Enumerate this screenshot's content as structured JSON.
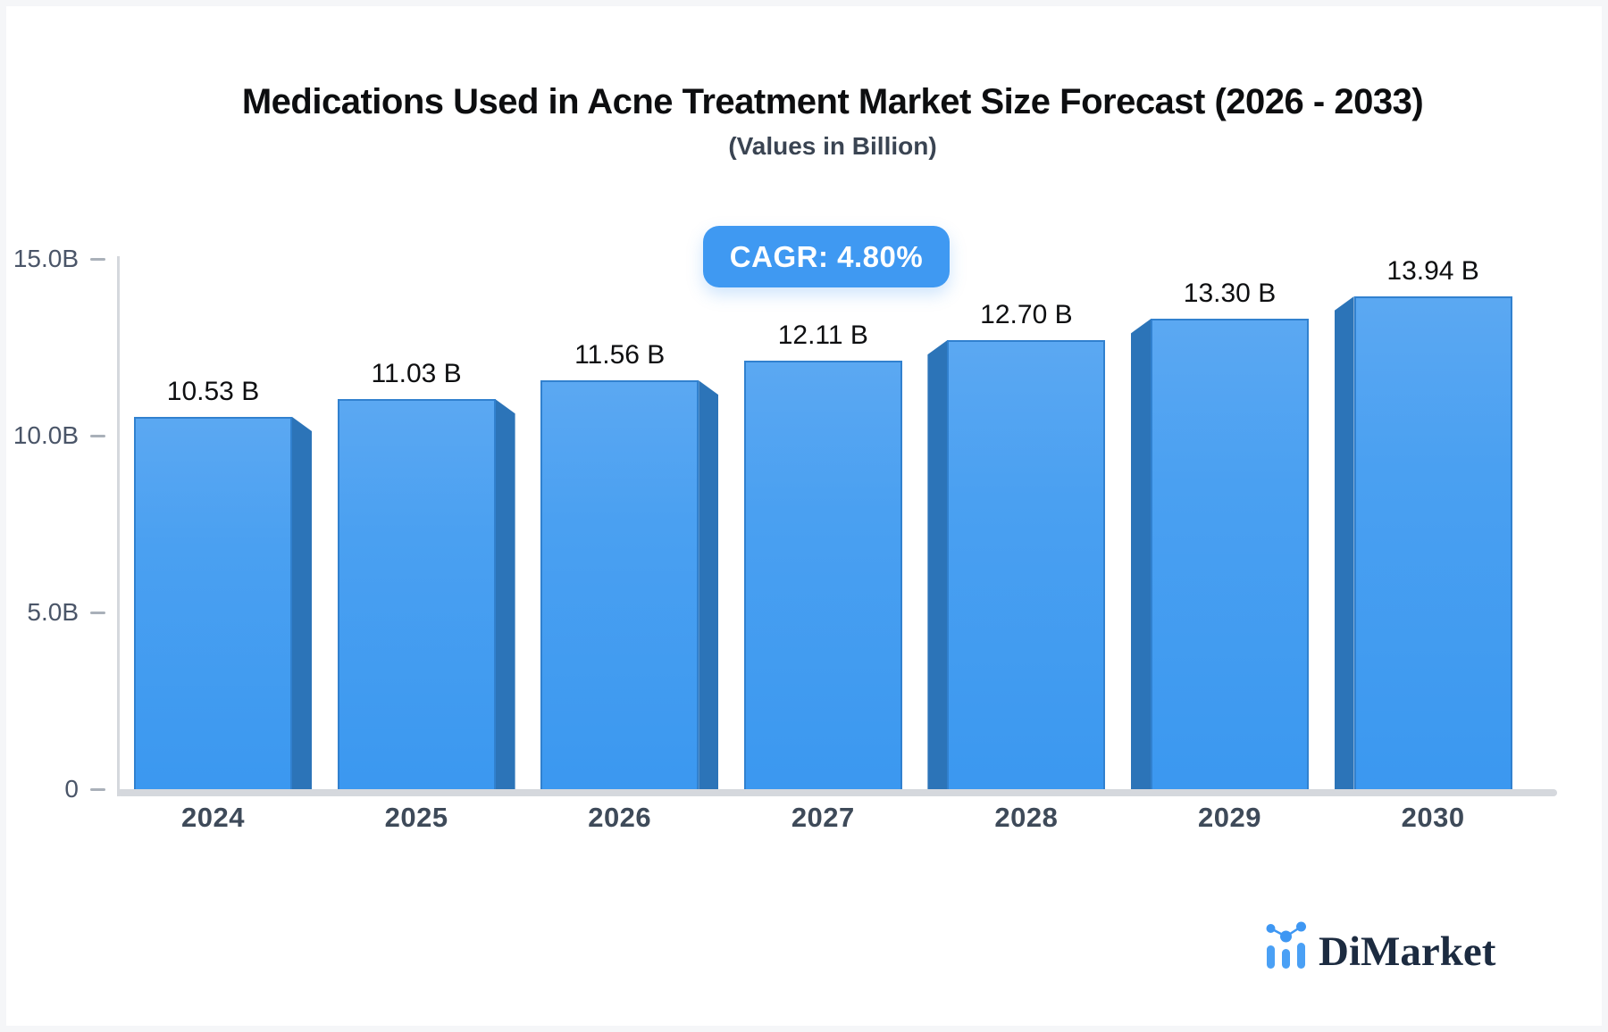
{
  "page": {
    "title": "Medications Used in Acne Treatment Market Size Forecast (2026 - 2033)",
    "subtitle": "(Values in Billion)",
    "cagr_badge": "CAGR: 4.80%",
    "brand": {
      "name": "DiMarket",
      "icon": "bar-chart-trend-icon"
    },
    "colors": {
      "bar_face_top": "#5BA8F2",
      "bar_face_bottom": "#3B98F0",
      "bar_side": "#2C74B8",
      "bar_border": "#3181CF",
      "badge_bg": "#3F99F2",
      "axis_gray": "#D5D8DD",
      "y_label_gray": "#4A5568",
      "x_label_slate": "#3E4A59",
      "brand_navy": "#1C2B40",
      "brand_blue": "#4AA0F5"
    }
  },
  "chart_data": {
    "type": "bar",
    "title": "Medications Used in Acne Treatment Market Size Forecast (2026 - 2033)",
    "subtitle": "(Values in Billion)",
    "annotation": "CAGR: 4.80%",
    "categories": [
      "2024",
      "2025",
      "2026",
      "2027",
      "2028",
      "2029",
      "2030"
    ],
    "values": [
      10.53,
      11.03,
      11.56,
      12.11,
      12.7,
      13.3,
      13.94
    ],
    "value_labels": [
      "10.53 B",
      "11.03 B",
      "11.56 B",
      "12.11 B",
      "12.70 B",
      "13.30 B",
      "13.94 B"
    ],
    "xlabel": "",
    "ylabel": "",
    "ylim": [
      0,
      15
    ],
    "yticks": [
      {
        "value": 15,
        "label": "15.0B"
      },
      {
        "value": 10,
        "label": "10.0B"
      },
      {
        "value": 5,
        "label": "5.0B"
      },
      {
        "value": 0,
        "label": "0"
      }
    ],
    "grid": false,
    "legend": false,
    "style": "3d-bevel-bars, bevel faces right for bars left of center, flat center bar, bevel faces left for bars right of center"
  }
}
